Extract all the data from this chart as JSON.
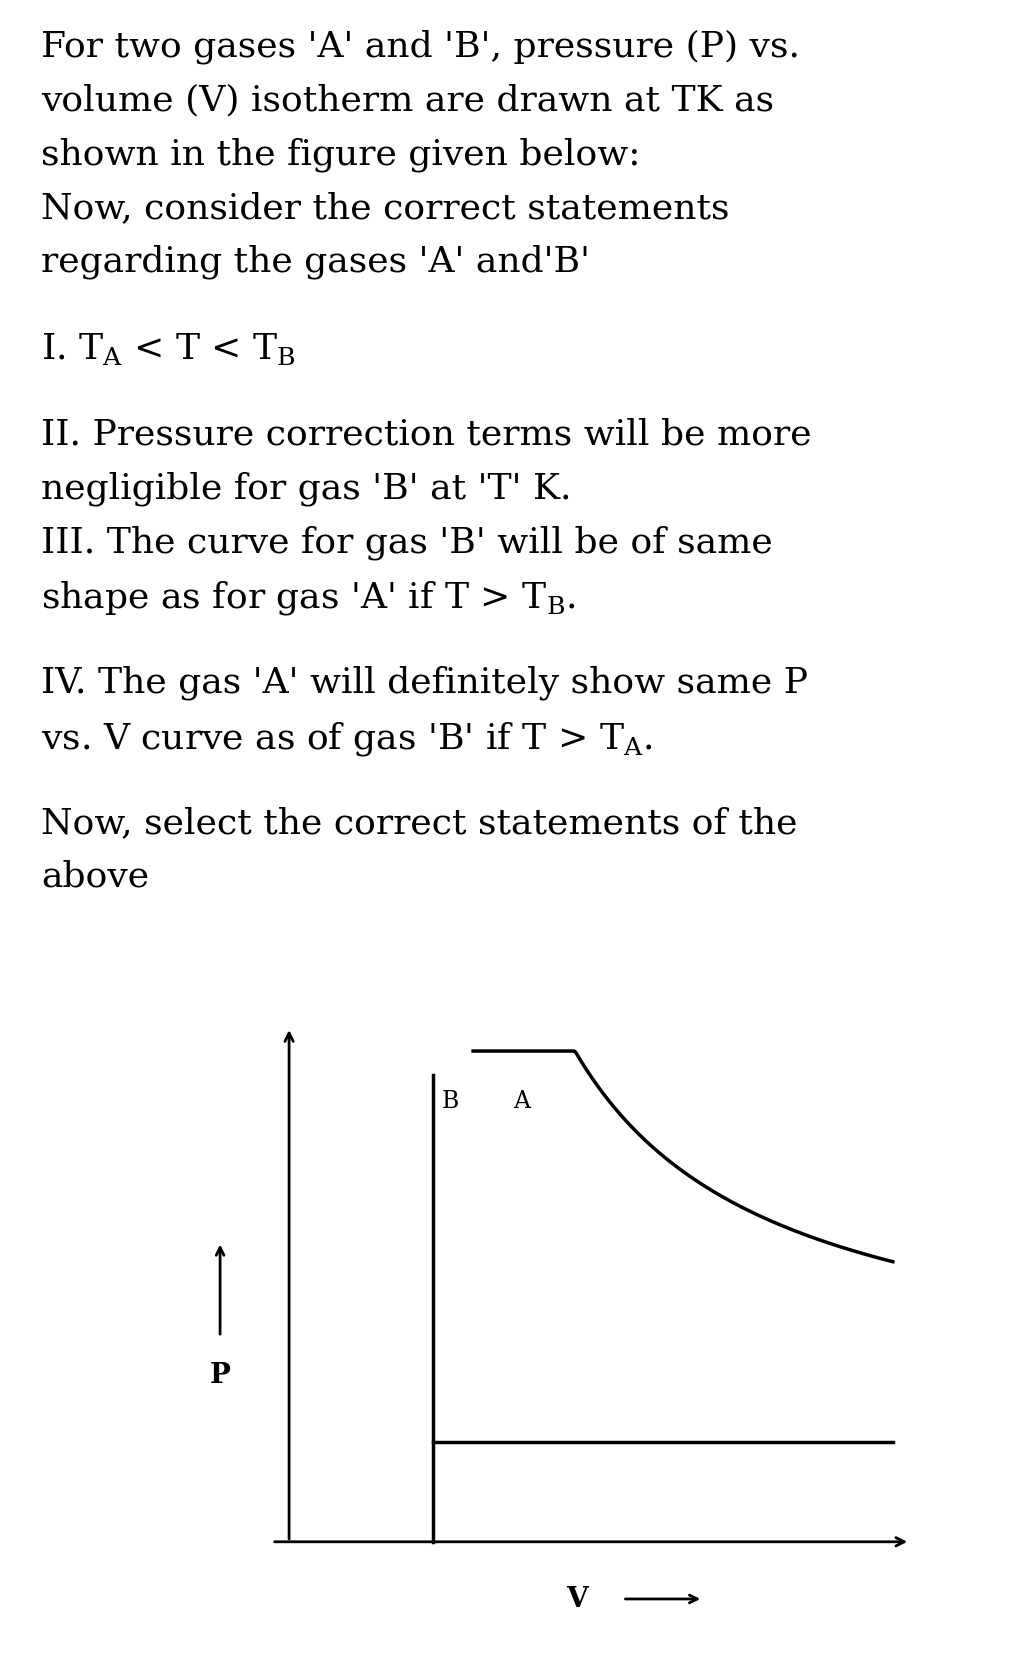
{
  "background_color": "#ffffff",
  "outer_bg": "#e8e8e8",
  "text_line1": "For two gases 'A' and 'B', pressure (P) vs.",
  "text_line2": "volume (V) isotherm are drawn at TK as",
  "text_line3": "shown in the figure given below:",
  "text_line4": "Now, consider the correct statements",
  "text_line5": "regarding the gases 'A' and'B'",
  "stat1": "I. T",
  "stat1_sub1": "A",
  "stat1_mid": " < T < T",
  "stat1_sub2": "B",
  "stat2_line1": "II. Pressure correction terms will be more",
  "stat2_line2": "negligible for gas 'B' at 'T' K.",
  "stat3_line1": "III. The curve for gas 'B' will be of same",
  "stat3_line2": "shape as for gas 'A' if T > T",
  "stat3_sub": "B",
  "stat3_end": ".",
  "stat4_line1": "IV. The gas 'A' will definitely show same P",
  "stat4_line2": "vs. V curve as of gas 'B' if T > T",
  "stat4_sub": "A",
  "stat4_end": ".",
  "final_line1": "Now, select the correct statements of the",
  "final_line2": "above",
  "font_size": 26,
  "graph_bg": "#ffffff",
  "axis_color": "#000000",
  "curve_color": "#000000"
}
